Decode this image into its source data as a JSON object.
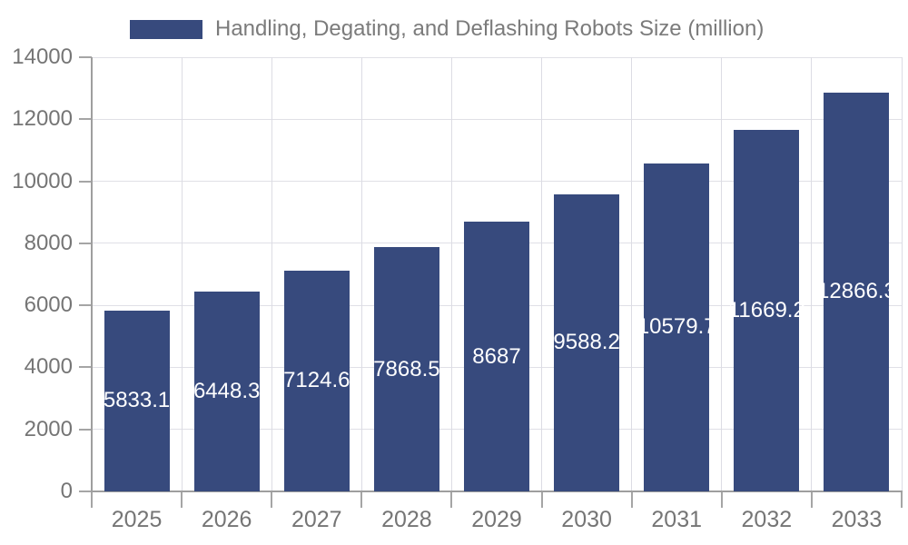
{
  "legend": {
    "label": "Handling, Degating, and Deflashing Robots Size (million)"
  },
  "chart_data": {
    "type": "bar",
    "title": "Handling, Degating, and Deflashing Robots Size (million)",
    "categories": [
      "2025",
      "2026",
      "2027",
      "2028",
      "2029",
      "2030",
      "2031",
      "2032",
      "2033"
    ],
    "series": [
      {
        "name": "Handling, Degating, and Deflashing Robots Size (million)",
        "values": [
          5833.1,
          6448.3,
          7124.6,
          7868.5,
          8687,
          9588.2,
          10579.7,
          11669.2,
          12866.3
        ],
        "value_labels": [
          "5833.1",
          "6448.3",
          "7124.6",
          "7868.5",
          "8687",
          "9588.2",
          "10579.7",
          "11669.2",
          "12866.3"
        ]
      }
    ],
    "xlabel": "",
    "ylabel": "",
    "ylim": [
      0,
      14000
    ],
    "yticks": [
      0,
      2000,
      4000,
      6000,
      8000,
      10000,
      12000,
      14000
    ],
    "grid": true,
    "legend_position": "top-left",
    "colors": {
      "bar": "#374A7D",
      "bar_label_text": "#ffffff",
      "axis": "#9e9e9e",
      "grid_horizontal": "#e0e0e6",
      "grid_vertical": "#dcdce4",
      "tick_text": "#757575",
      "legend_text": "#7b7b7b",
      "background": "#ffffff"
    }
  }
}
